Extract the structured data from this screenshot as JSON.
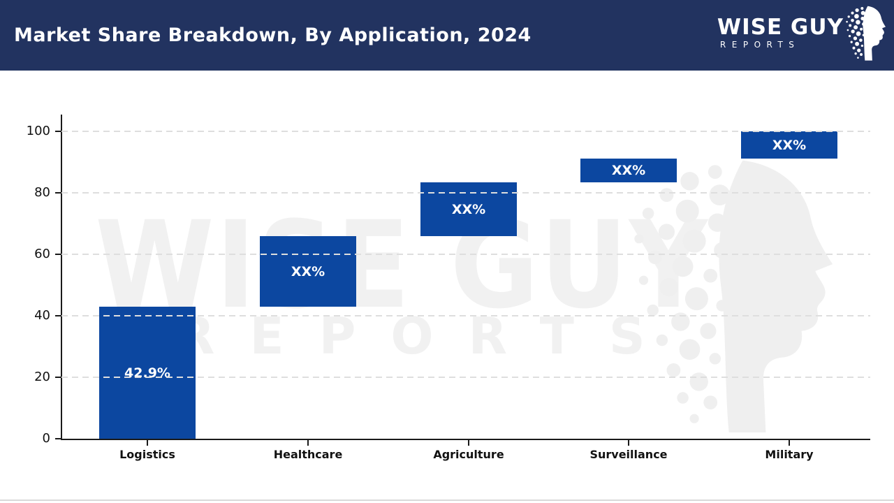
{
  "header": {
    "title": "Market Share Breakdown, By Application, 2024",
    "logo": {
      "line1": "WISE GUY",
      "line2": "REPORTS"
    }
  },
  "watermark": {
    "line1": "WISE GUY",
    "line2": "REPORTS"
  },
  "colors": {
    "header_bg": "#223360",
    "bar": "#0c47a0",
    "bar_label": "#ffffff",
    "axis": "#1a1a1a",
    "grid": "#dedede",
    "tick_label": "#111111",
    "watermark": "#f1f1f1",
    "hairline": "#d9d9d9"
  },
  "chart_data": {
    "type": "bar",
    "subtype": "waterfall",
    "title": "Market Share Breakdown, By Application, 2024",
    "categories": [
      "Logistics",
      "Healthcare",
      "Agriculture",
      "Surveillance",
      "Military"
    ],
    "segments": [
      {
        "category": "Logistics",
        "start": 0,
        "end": 42.9,
        "value": 42.9,
        "label": "42.9%"
      },
      {
        "category": "Healthcare",
        "start": 42.9,
        "end": 65.8,
        "value": 22.9,
        "label": "XX%"
      },
      {
        "category": "Agriculture",
        "start": 65.8,
        "end": 83.4,
        "value": 17.6,
        "label": "XX%"
      },
      {
        "category": "Surveillance",
        "start": 83.4,
        "end": 91.1,
        "value": 7.7,
        "label": "XX%"
      },
      {
        "category": "Military",
        "start": 91.1,
        "end": 100,
        "value": 8.9,
        "label": "XX%"
      }
    ],
    "ylim": [
      0,
      100
    ],
    "yticks": [
      0,
      20,
      40,
      60,
      80,
      100
    ],
    "xlabel": "",
    "ylabel": "",
    "grid": "horizontal-dashed",
    "legend": "none"
  }
}
